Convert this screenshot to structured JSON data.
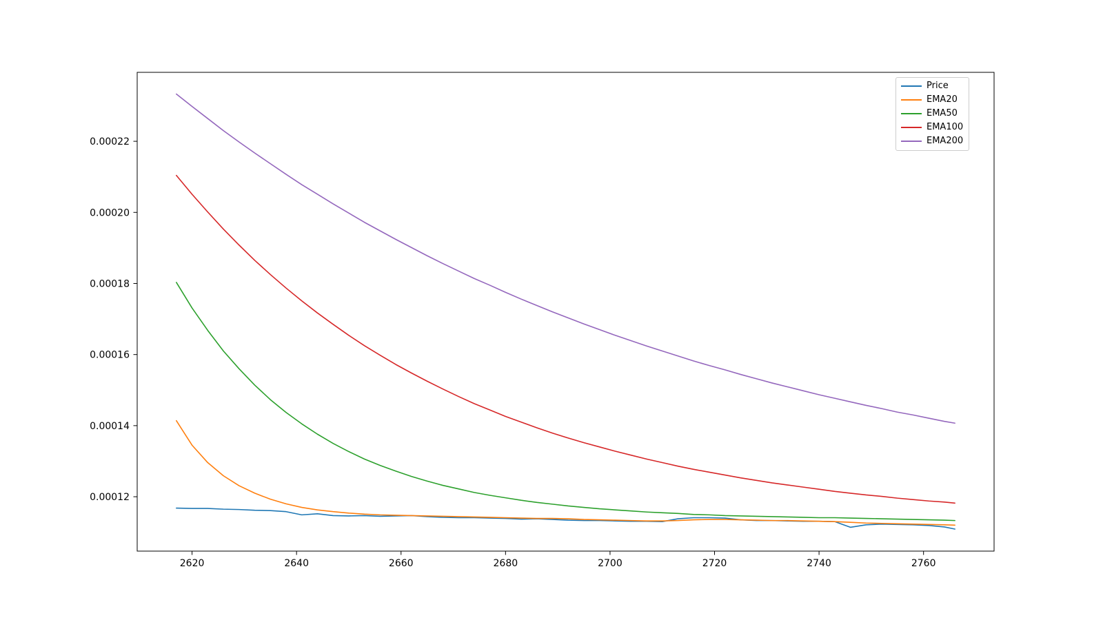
{
  "figure": {
    "background": "#ffffff",
    "axes_edge_color": "#000000",
    "tick_color": "#000000"
  },
  "legend": {
    "position": "upper right",
    "entries": [
      "Price",
      "EMA20",
      "EMA50",
      "EMA100",
      "EMA200"
    ]
  },
  "chart_data": {
    "type": "line",
    "title": "",
    "xlabel": "",
    "ylabel": "",
    "grid": false,
    "legend_position": "upper right",
    "xlim": [
      2609.5,
      2773.5
    ],
    "ylim": [
      0.0001047,
      0.0002394
    ],
    "x_ticks": [
      2620,
      2640,
      2660,
      2680,
      2700,
      2720,
      2740,
      2760
    ],
    "y_ticks": [
      0.00012,
      0.00014,
      0.00016,
      0.00018,
      0.0002,
      0.00022
    ],
    "y_tick_labels": [
      "0.00012",
      "0.00014",
      "0.00016",
      "0.00018",
      "0.00020",
      "0.00022"
    ],
    "x_tick_labels": [
      "2620",
      "2640",
      "2660",
      "2680",
      "2700",
      "2720",
      "2740",
      "2760"
    ],
    "x": [
      2617,
      2620,
      2623,
      2626,
      2629,
      2632,
      2635,
      2638,
      2641,
      2644,
      2647,
      2650,
      2653,
      2656,
      2659,
      2662,
      2665,
      2668,
      2671,
      2674,
      2677,
      2680,
      2683,
      2686,
      2689,
      2692,
      2695,
      2698,
      2701,
      2704,
      2707,
      2710,
      2713,
      2716,
      2719,
      2722,
      2725,
      2728,
      2731,
      2734,
      2737,
      2740,
      2743,
      2746,
      2749,
      2752,
      2755,
      2758,
      2761,
      2764,
      2766
    ],
    "series": [
      {
        "name": "Price",
        "color": "#1f77b4",
        "values": [
          0.0001168,
          0.0001167,
          0.0001167,
          0.0001165,
          0.0001164,
          0.0001162,
          0.0001161,
          0.0001158,
          0.0001149,
          0.0001152,
          0.0001147,
          0.0001146,
          0.0001147,
          0.0001145,
          0.0001146,
          0.0001147,
          0.0001144,
          0.0001142,
          0.0001141,
          0.0001141,
          0.000114,
          0.0001139,
          0.0001137,
          0.0001138,
          0.0001136,
          0.0001134,
          0.0001133,
          0.0001133,
          0.0001132,
          0.0001131,
          0.0001131,
          0.000113,
          0.0001138,
          0.0001141,
          0.0001141,
          0.000114,
          0.0001135,
          0.0001133,
          0.0001133,
          0.0001132,
          0.0001131,
          0.0001131,
          0.000113,
          0.0001114,
          0.0001121,
          0.0001123,
          0.0001122,
          0.0001121,
          0.0001119,
          0.0001115,
          0.0001109
        ]
      },
      {
        "name": "EMA20",
        "color": "#ff7f0e",
        "values": [
          0.0001414,
          0.0001345,
          0.0001296,
          0.0001259,
          0.0001231,
          0.000121,
          0.0001193,
          0.000118,
          0.000117,
          0.0001163,
          0.0001158,
          0.0001154,
          0.0001151,
          0.0001149,
          0.0001148,
          0.0001147,
          0.0001146,
          0.0001145,
          0.0001144,
          0.0001143,
          0.0001142,
          0.0001141,
          0.000114,
          0.0001139,
          0.0001139,
          0.0001138,
          0.0001136,
          0.0001135,
          0.0001134,
          0.0001133,
          0.0001132,
          0.0001132,
          0.0001133,
          0.0001135,
          0.0001136,
          0.0001136,
          0.0001135,
          0.0001134,
          0.0001133,
          0.0001133,
          0.0001132,
          0.0001131,
          0.000113,
          0.0001128,
          0.0001126,
          0.0001125,
          0.0001124,
          0.0001123,
          0.0001122,
          0.0001121,
          0.000112
        ]
      },
      {
        "name": "EMA50",
        "color": "#2ca02c",
        "values": [
          0.0001803,
          0.0001731,
          0.0001668,
          0.000161,
          0.000156,
          0.0001514,
          0.0001473,
          0.0001437,
          0.0001405,
          0.0001376,
          0.000135,
          0.0001327,
          0.0001306,
          0.0001288,
          0.0001272,
          0.0001257,
          0.0001244,
          0.0001232,
          0.0001222,
          0.0001212,
          0.0001204,
          0.0001197,
          0.000119,
          0.0001184,
          0.0001179,
          0.0001174,
          0.000117,
          0.0001166,
          0.0001163,
          0.000116,
          0.0001157,
          0.0001155,
          0.0001153,
          0.000115,
          0.0001149,
          0.0001147,
          0.0001146,
          0.0001145,
          0.0001144,
          0.0001143,
          0.0001142,
          0.0001141,
          0.0001141,
          0.000114,
          0.0001139,
          0.0001138,
          0.0001137,
          0.0001136,
          0.0001135,
          0.0001134,
          0.0001133
        ]
      },
      {
        "name": "EMA100",
        "color": "#d62728",
        "values": [
          0.0002104,
          0.0002051,
          0.0002001,
          0.0001953,
          0.0001908,
          0.0001865,
          0.0001825,
          0.0001787,
          0.0001751,
          0.0001717,
          0.0001685,
          0.0001654,
          0.0001625,
          0.0001598,
          0.0001572,
          0.0001548,
          0.0001525,
          0.0001503,
          0.0001482,
          0.0001462,
          0.0001444,
          0.0001426,
          0.000141,
          0.0001394,
          0.0001379,
          0.0001365,
          0.0001352,
          0.000134,
          0.0001328,
          0.0001317,
          0.0001306,
          0.0001296,
          0.0001286,
          0.0001277,
          0.0001269,
          0.0001261,
          0.0001253,
          0.0001246,
          0.0001239,
          0.0001233,
          0.0001227,
          0.0001221,
          0.0001215,
          0.000121,
          0.0001205,
          0.0001201,
          0.0001196,
          0.0001192,
          0.0001188,
          0.0001185,
          0.0001182
        ]
      },
      {
        "name": "EMA200",
        "color": "#9467bd",
        "values": [
          0.0002333,
          0.0002298,
          0.0002264,
          0.000223,
          0.0002198,
          0.0002167,
          0.0002137,
          0.0002107,
          0.0002078,
          0.0002051,
          0.0002024,
          0.0001998,
          0.0001972,
          0.0001948,
          0.0001924,
          0.0001901,
          0.0001878,
          0.0001856,
          0.0001835,
          0.0001814,
          0.0001795,
          0.0001775,
          0.0001756,
          0.0001738,
          0.000172,
          0.0001703,
          0.0001686,
          0.000167,
          0.0001654,
          0.0001639,
          0.0001624,
          0.000161,
          0.0001596,
          0.0001582,
          0.0001569,
          0.0001557,
          0.0001544,
          0.0001532,
          0.000152,
          0.0001509,
          0.0001498,
          0.0001487,
          0.0001477,
          0.0001467,
          0.0001457,
          0.0001448,
          0.0001438,
          0.000143,
          0.0001421,
          0.0001412,
          0.0001407
        ]
      }
    ]
  }
}
